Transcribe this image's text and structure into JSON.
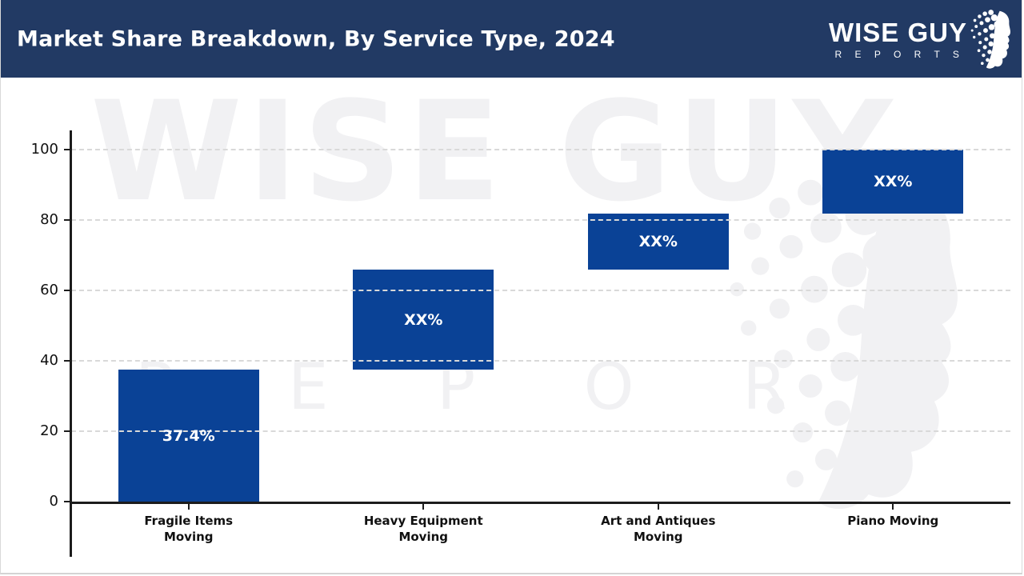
{
  "header": {
    "title": "Market Share Breakdown, By Service Type, 2024",
    "bg_color": "#223a64",
    "logo": {
      "line1": "WISE GUY",
      "line2": "R E P O R T S"
    }
  },
  "watermark": {
    "line1": "WISE GUY",
    "line2": "R E P O R T S"
  },
  "chart_data": {
    "type": "bar",
    "subtype": "waterfall-floating-bars",
    "title": "Market Share Breakdown, By Service Type, 2024",
    "categories": [
      [
        "Fragile Items",
        "Moving"
      ],
      [
        "Heavy Equipment",
        "Moving"
      ],
      [
        "Art and Antiques",
        "Moving"
      ],
      [
        "Piano Moving"
      ]
    ],
    "bars": [
      {
        "start": 0,
        "end": 37.4,
        "label": "37.4%",
        "value_estimate": 37.4
      },
      {
        "start": 37.4,
        "end": 65.9,
        "label": "XX%",
        "value_estimate": 28.5
      },
      {
        "start": 65.9,
        "end": 81.8,
        "label": "XX%",
        "value_estimate": 15.9
      },
      {
        "start": 81.8,
        "end": 100.0,
        "label": "XX%",
        "value_estimate": 18.2
      }
    ],
    "xlabel": "",
    "ylabel": "",
    "ylim": [
      0,
      105.5
    ],
    "yticks": [
      0,
      20,
      40,
      60,
      80,
      100
    ],
    "grid": "horizontal-dashed, drawn above bars",
    "legend": "none",
    "bar_color": "#0a4296",
    "bar_label_color": "#ffffff",
    "axis_color": "#1c1c1c",
    "gridline_color": "#d9d9d9",
    "watermark_color": "#f1f1f3"
  }
}
